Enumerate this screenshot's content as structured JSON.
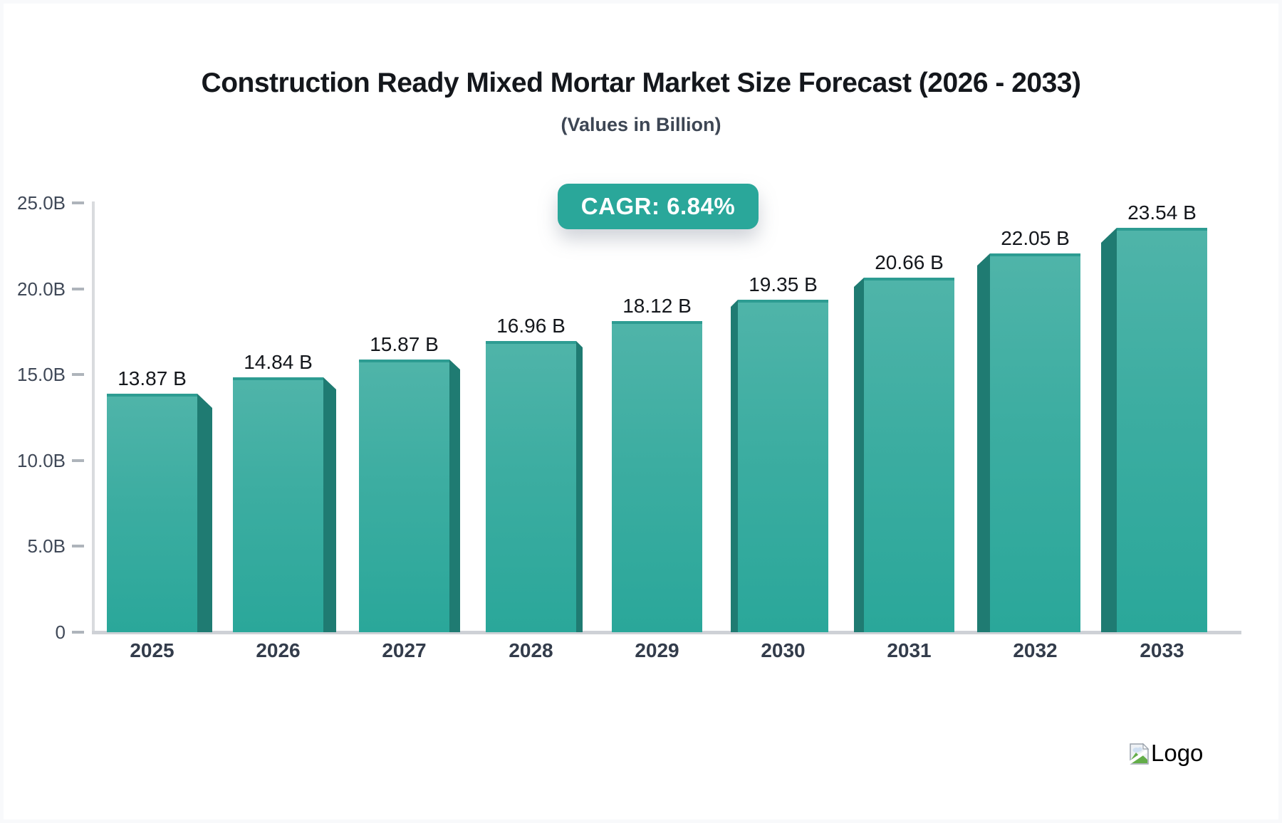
{
  "page": {
    "background": "#ffffff",
    "frame_color": "#f8f9fb"
  },
  "header": {
    "title": "Construction Ready Mixed Mortar Market Size Forecast (2026 - 2033)",
    "subtitle": "(Values in Billion)"
  },
  "badge": {
    "label": "CAGR: 6.84%",
    "background": "#2aa79a",
    "text_color": "#ffffff"
  },
  "chart_data": {
    "type": "bar",
    "title": "Construction Ready Mixed Mortar Market Size Forecast (2026 - 2033)",
    "subtitle": "(Values in Billion)",
    "unit": "Billion",
    "categories": [
      "2025",
      "2026",
      "2027",
      "2028",
      "2029",
      "2030",
      "2031",
      "2032",
      "2033"
    ],
    "values": [
      13.87,
      14.84,
      15.87,
      16.96,
      18.12,
      19.35,
      20.66,
      22.05,
      23.54
    ],
    "value_labels": [
      "13.87 B",
      "14.84 B",
      "15.87 B",
      "16.96 B",
      "18.12 B",
      "19.35 B",
      "20.66 B",
      "22.05 B",
      "23.54 B"
    ],
    "y_axis": {
      "tick_labels": [
        "25.0B",
        "20.0B",
        "15.0B",
        "10.0B",
        "5.0B",
        "0"
      ],
      "tick_values": [
        25,
        20,
        15,
        10,
        5,
        0
      ],
      "ylim": [
        0,
        25
      ]
    },
    "grid": false,
    "legend": false,
    "annotations": [
      "CAGR: 6.84%"
    ],
    "colors": {
      "bar_face_top": "#4fb4a9",
      "bar_face_bottom": "#2aa79a",
      "bar_top_cap": "#2d9c92",
      "bar_side_3d": "#1f7b72",
      "axis_line": "#ced1d6",
      "tick_mark": "#aeb4bb",
      "axis_label": "#3f4857",
      "category_label": "#333c4b",
      "value_label": "#14171c"
    }
  },
  "logo": {
    "alt_text": "Logo"
  }
}
